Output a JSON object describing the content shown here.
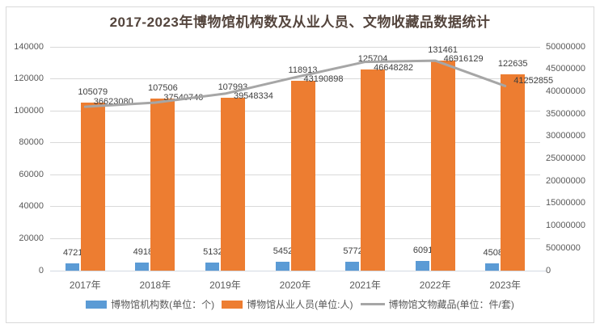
{
  "title": "2017-2023年博物馆机构数及从业人员、文物收藏品数据统计",
  "chart_data": {
    "type": "combo",
    "title": "2017-2023年博物馆机构数及从业人员、文物收藏品数据统计",
    "categories": [
      "2017年",
      "2018年",
      "2019年",
      "2020年",
      "2021年",
      "2022年",
      "2023年"
    ],
    "series": [
      {
        "name": "博物馆机构数(单位：个)",
        "type": "bar",
        "axis": "left",
        "color": "#5B9BD5",
        "values": [
          4721,
          4918,
          5132,
          5452,
          5772,
          6091,
          4508
        ]
      },
      {
        "name": "博物馆从业人员(单位:人)",
        "type": "bar",
        "axis": "left",
        "color": "#ED7D31",
        "values": [
          105079,
          107506,
          107993,
          118913,
          125704,
          131461,
          122635
        ]
      },
      {
        "name": "博物馆文物藏品(单位：件/套)",
        "type": "line",
        "axis": "right",
        "color": "#A6A6A6",
        "values": [
          36623080,
          37540740,
          39548334,
          43190898,
          46648282,
          46916129,
          41252855
        ]
      }
    ],
    "left_axis": {
      "min": 0,
      "max": 140000,
      "tick_labels": [
        "0",
        "20000",
        "40000",
        "60000",
        "80000",
        "100000",
        "120000",
        "140000"
      ]
    },
    "right_axis": {
      "min": 0,
      "max": 50000000,
      "tick_labels": [
        "0",
        "5000000",
        "10000000",
        "15000000",
        "20000000",
        "25000000",
        "30000000",
        "35000000",
        "40000000",
        "45000000",
        "50000000"
      ]
    },
    "grid": true,
    "legend_position": "bottom",
    "data_labels": true
  },
  "colors": {
    "grid": "#D9D9D9",
    "axis_line": "#D3D9E2",
    "axis_text": "#595959",
    "label_text": "#3F3F3F",
    "title_text": "#53443C",
    "frame_border": "#D9D9D9"
  }
}
